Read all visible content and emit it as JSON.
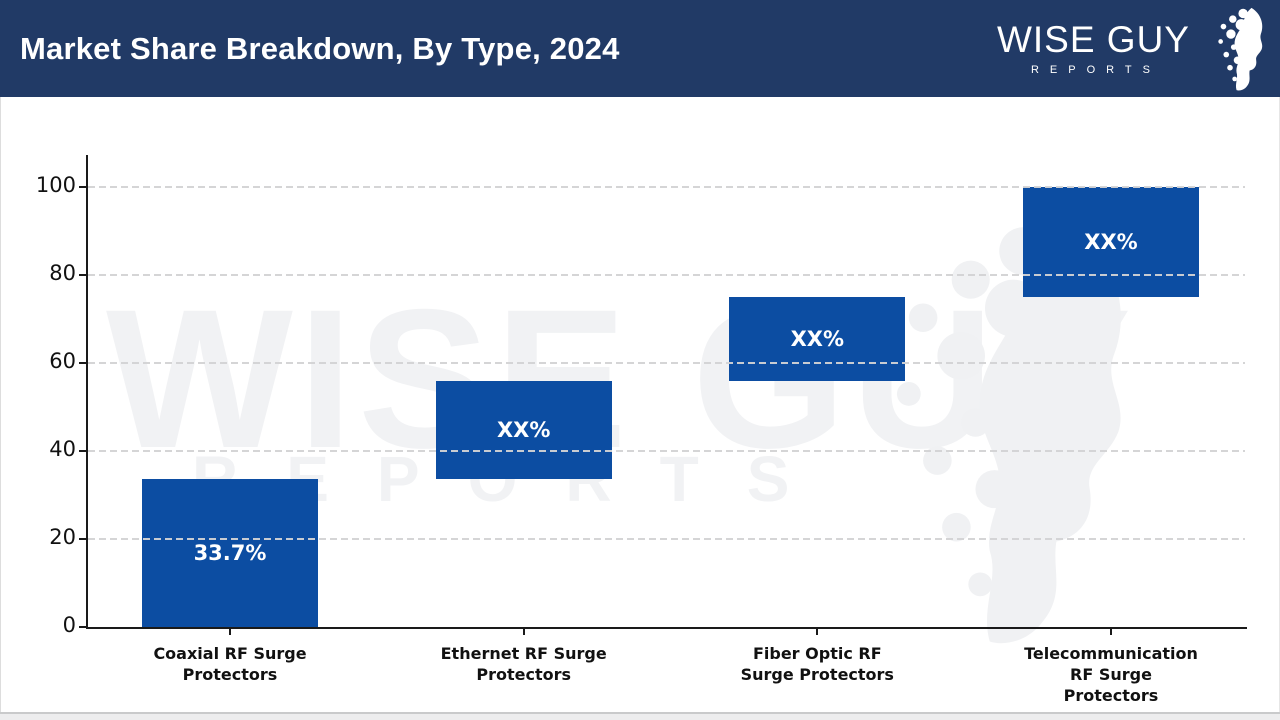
{
  "header": {
    "title": "Market Share Breakdown, By Type, 2024",
    "background_color": "#213a66",
    "logo": {
      "wordmark": "WISE GUY",
      "subtext": "REPORTS"
    }
  },
  "watermark": {
    "wordmark": "WISE GUY",
    "subtext": "REPORTS"
  },
  "chart_data": {
    "type": "bar",
    "variant": "waterfall",
    "title": "Market Share Breakdown, By Type, 2024",
    "categories": [
      "Coaxial RF Surge Protectors",
      "Ethernet RF Surge Protectors",
      "Fiber Optic RF Surge Protectors",
      "Telecommunication RF Surge Protectors"
    ],
    "xtick_lines": [
      [
        "Coaxial RF Surge",
        "Protectors"
      ],
      [
        "Ethernet RF Surge",
        "Protectors"
      ],
      [
        "Fiber Optic RF",
        "Surge Protectors"
      ],
      [
        "Telecommunication",
        "RF Surge",
        "Protectors"
      ]
    ],
    "series": [
      {
        "category": "Coaxial RF Surge Protectors",
        "start": 0,
        "end": 33.7,
        "label": "33.7%"
      },
      {
        "category": "Ethernet RF Surge Protectors",
        "start": 33.7,
        "end": 56,
        "label": "XX%"
      },
      {
        "category": "Fiber Optic RF Surge Protectors",
        "start": 56,
        "end": 75,
        "label": "XX%"
      },
      {
        "category": "Telecommunication RF Surge Protectors",
        "start": 75,
        "end": 100,
        "label": "XX%"
      }
    ],
    "yticks": [
      0,
      20,
      40,
      60,
      80,
      100
    ],
    "ylim": [
      0,
      107
    ],
    "bar_color": "#0c4da2",
    "grid": {
      "orientation": "horizontal",
      "style": "dashed",
      "color": "#d8d8d8"
    },
    "legend": "none"
  }
}
